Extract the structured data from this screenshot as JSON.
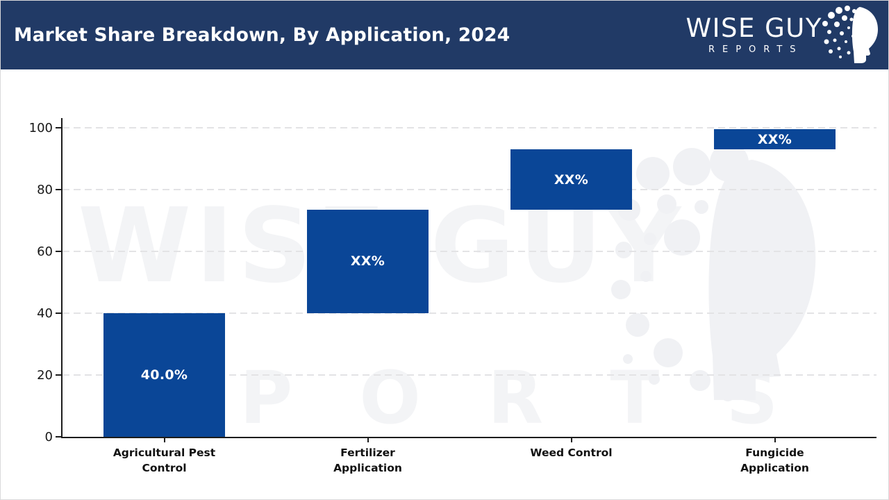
{
  "header": {
    "title": "Market Share Breakdown, By Application, 2024",
    "logo": {
      "name": "WISE GUY",
      "sub": "REPORTS",
      "face_icon": "dotted-head-profile"
    }
  },
  "watermark": {
    "line1": "WISE GUY",
    "line2": "P O R T S",
    "face_icon": "dotted-head-profile-watermark"
  },
  "chart_data": {
    "type": "bar",
    "subtype": "waterfall",
    "title": "Market Share Breakdown, By Application, 2024",
    "categories": [
      "Agricultural Pest\nControl",
      "Fertilizer\nApplication",
      "Weed Control",
      "Fungicide\nApplication"
    ],
    "segments": [
      {
        "category": "Agricultural Pest Control",
        "from": 0,
        "to": 40,
        "label": "40.0%"
      },
      {
        "category": "Fertilizer Application",
        "from": 40,
        "to": 73.5,
        "label": "XX%"
      },
      {
        "category": "Weed Control",
        "from": 73.5,
        "to": 93,
        "label": "XX%"
      },
      {
        "category": "Fungicide Application",
        "from": 93,
        "to": 99.5,
        "label": "XX%"
      }
    ],
    "yticks": [
      0,
      20,
      40,
      60,
      80,
      100
    ],
    "ylim": [
      0,
      103.15
    ],
    "xlabel": "",
    "ylabel": "",
    "grid": "horizontal dashed",
    "legend": "none",
    "bar_color": "#0a4697",
    "bar_label_color": "#ffffff",
    "header_color": "#213a66"
  }
}
